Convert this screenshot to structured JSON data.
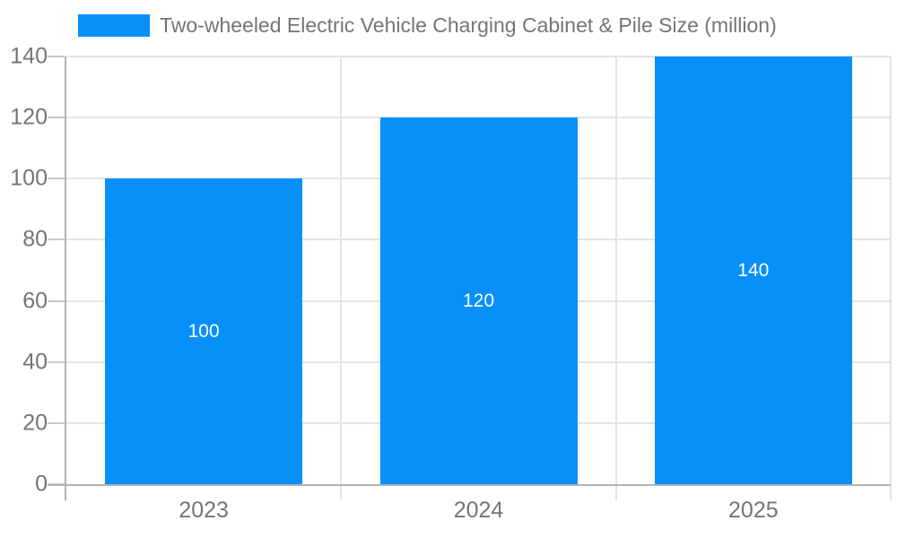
{
  "legend": {
    "swatch_color": "#0890fa",
    "label": "Two-wheeled Electric Vehicle Charging Cabinet & Pile Size (million)"
  },
  "chart_data": {
    "type": "bar",
    "categories": [
      "2023",
      "2024",
      "2025"
    ],
    "series": [
      {
        "name": "Two-wheeled Electric Vehicle Charging Cabinet & Pile Size (million)",
        "values": [
          100,
          120,
          140
        ],
        "data_labels": [
          "100",
          "120",
          "140"
        ],
        "color": "#0890fa"
      }
    ],
    "ylim": [
      0,
      140
    ],
    "yticks": [
      0,
      20,
      40,
      60,
      80,
      100,
      120,
      140
    ],
    "grid": true,
    "legend_position": "top-left",
    "colors": {
      "bar": "#0890fa",
      "axis_text": "#757575",
      "legend_text": "#757575",
      "data_label_text": "#ffffff",
      "axis_line": "#b3b3b3",
      "y_tick": "#c9c9c9",
      "gridline": "#e4e4e4",
      "background": "#ffffff"
    }
  }
}
